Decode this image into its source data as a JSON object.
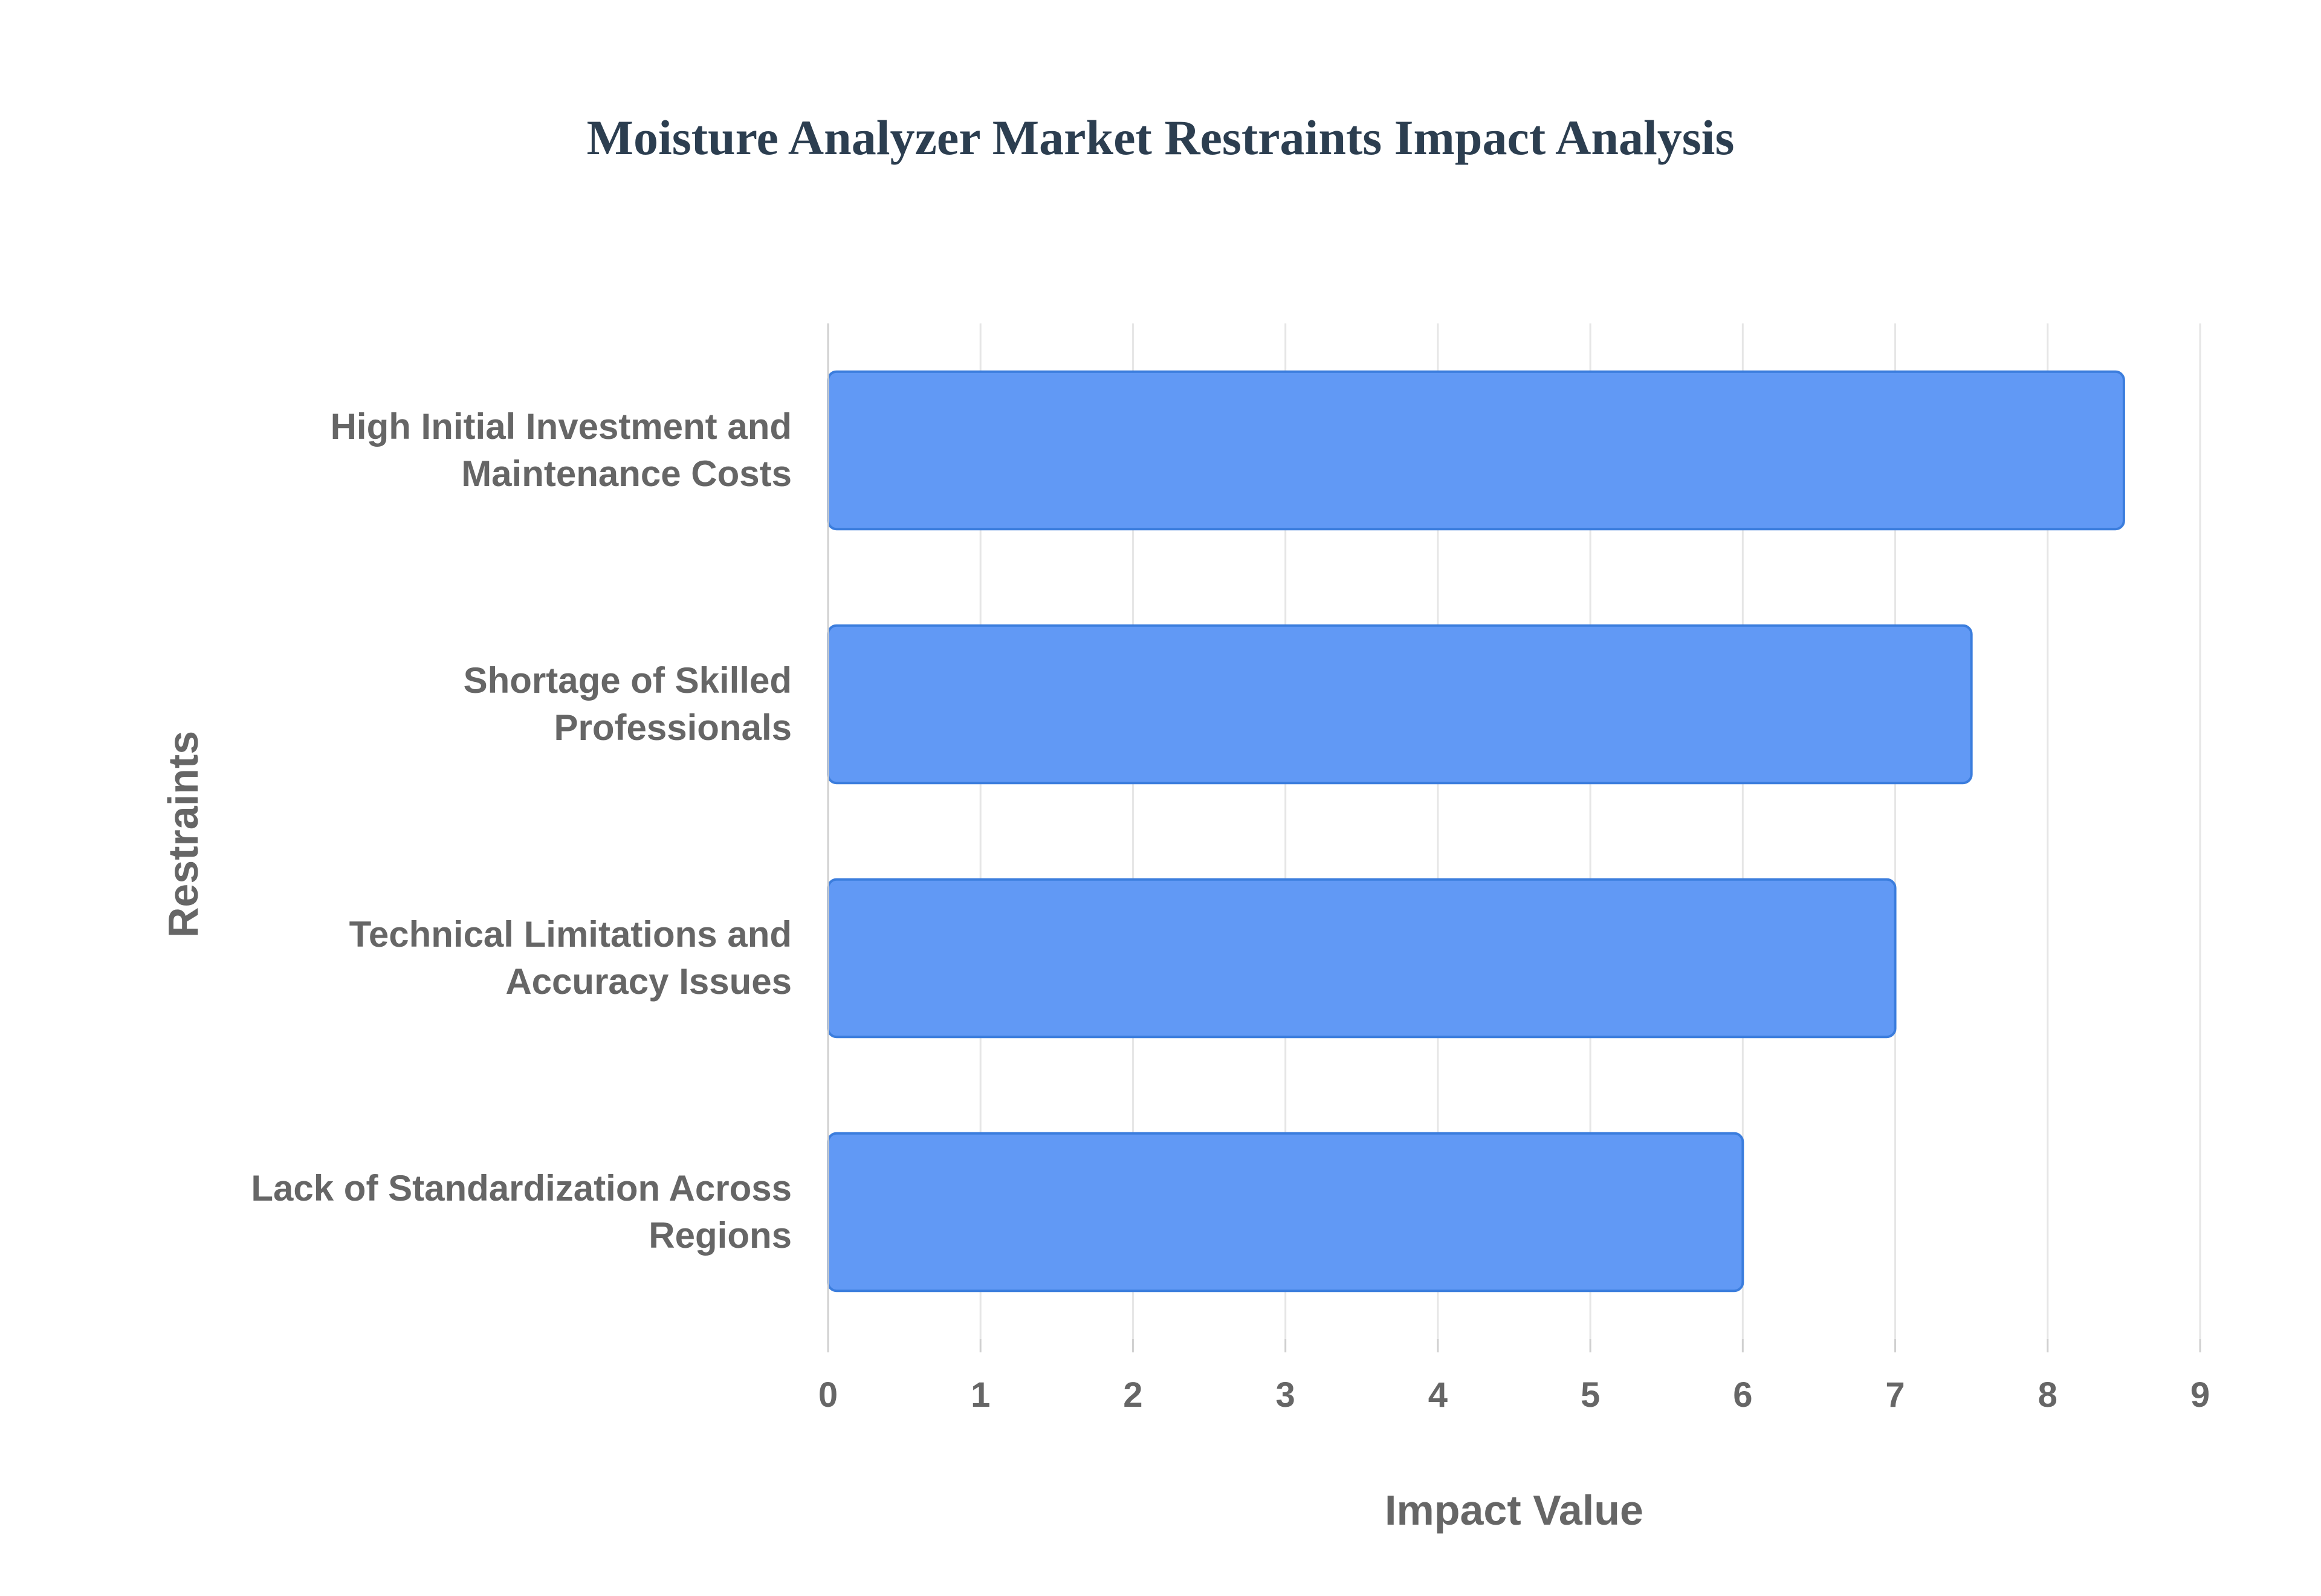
{
  "chart_data": {
    "type": "bar",
    "orientation": "horizontal",
    "title": "Moisture Analyzer Market Restraints Impact Analysis",
    "xlabel": "Impact Value",
    "ylabel": "Restraints",
    "categories": [
      [
        "High Initial Investment and",
        "Maintenance Costs"
      ],
      [
        "Shortage of Skilled",
        "Professionals"
      ],
      [
        "Technical Limitations and",
        "Accuracy Issues"
      ],
      [
        "Lack of Standardization Across",
        "Regions"
      ]
    ],
    "values": [
      8.5,
      7.5,
      7,
      6
    ],
    "xlim": [
      0,
      9
    ],
    "xticks": [
      0,
      1,
      2,
      3,
      4,
      5,
      6,
      7,
      8,
      9
    ],
    "grid": true,
    "bar_color": "#6199f5",
    "bar_edge_color": "#3b7ddd"
  }
}
